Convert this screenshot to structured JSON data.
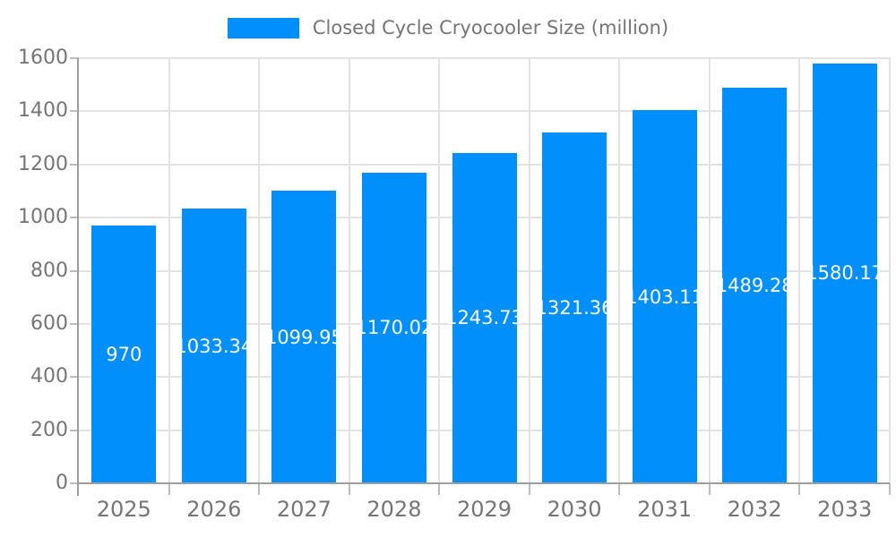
{
  "legend": {
    "label": "Closed Cycle Cryocooler Size (million)"
  },
  "chart_data": {
    "type": "bar",
    "title": "Closed Cycle Cryocooler Size (million)",
    "categories": [
      "2025",
      "2026",
      "2027",
      "2028",
      "2029",
      "2030",
      "2031",
      "2032",
      "2033"
    ],
    "values": [
      970,
      1033.34,
      1099.95,
      1170.02,
      1243.73,
      1321.36,
      1403.11,
      1489.28,
      1580.17
    ],
    "value_labels": [
      "970",
      "1033.34",
      "1099.95",
      "1170.02",
      "1243.73",
      "1321.36",
      "1403.11",
      "1489.28",
      "1580.17"
    ],
    "series": [
      {
        "name": "Closed Cycle Cryocooler Size (million)",
        "values": [
          970,
          1033.34,
          1099.95,
          1170.02,
          1243.73,
          1321.36,
          1403.11,
          1489.28,
          1580.17
        ]
      }
    ],
    "xlabel": "",
    "ylabel": "",
    "ylim": [
      0,
      1600
    ],
    "ytick_step": 200,
    "ytick_labels": [
      "0",
      "200",
      "400",
      "600",
      "800",
      "1000",
      "1200",
      "1400",
      "1600"
    ],
    "grid": true,
    "legend_position": "top",
    "value_labels_position": "center-inside",
    "colors": {
      "bar": "#008FFB",
      "grid": "#e3e3e3",
      "axis": "#9e9e9e",
      "tick": "#bdbdbd",
      "text": "#757575",
      "bar_label": "#ffffff",
      "background": "#ffffff"
    }
  }
}
